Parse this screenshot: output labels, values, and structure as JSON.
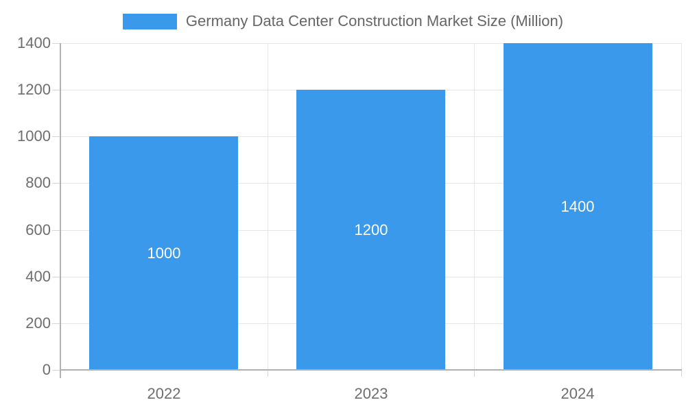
{
  "chart_data": {
    "type": "bar",
    "title": "Germany Data Center Construction Market Size (Million)",
    "legend": {
      "position": "top",
      "label": "Germany Data Center Construction Market Size (Million)"
    },
    "categories": [
      "2022",
      "2023",
      "2024"
    ],
    "series": [
      {
        "name": "Germany Data Center Construction Market Size (Million)",
        "values": [
          1000,
          1200,
          1400
        ]
      }
    ],
    "bar_value_labels": [
      "1000",
      "1200",
      "1400"
    ],
    "xlabel": "",
    "ylabel": "",
    "ylim": [
      0,
      1400
    ],
    "ytick_step": 200,
    "yticks": [
      0,
      200,
      400,
      600,
      800,
      1000,
      1200,
      1400
    ],
    "grid": true,
    "colors": {
      "bar": "#3b99ec",
      "bar_label": "#ffffff",
      "axis_label": "#6e6e6e",
      "legend_text": "#666666",
      "gridline": "#e6e6e6",
      "tick_mark": "#d6d6d6",
      "axis_line": "#b0b0b0",
      "background": "#ffffff"
    }
  }
}
